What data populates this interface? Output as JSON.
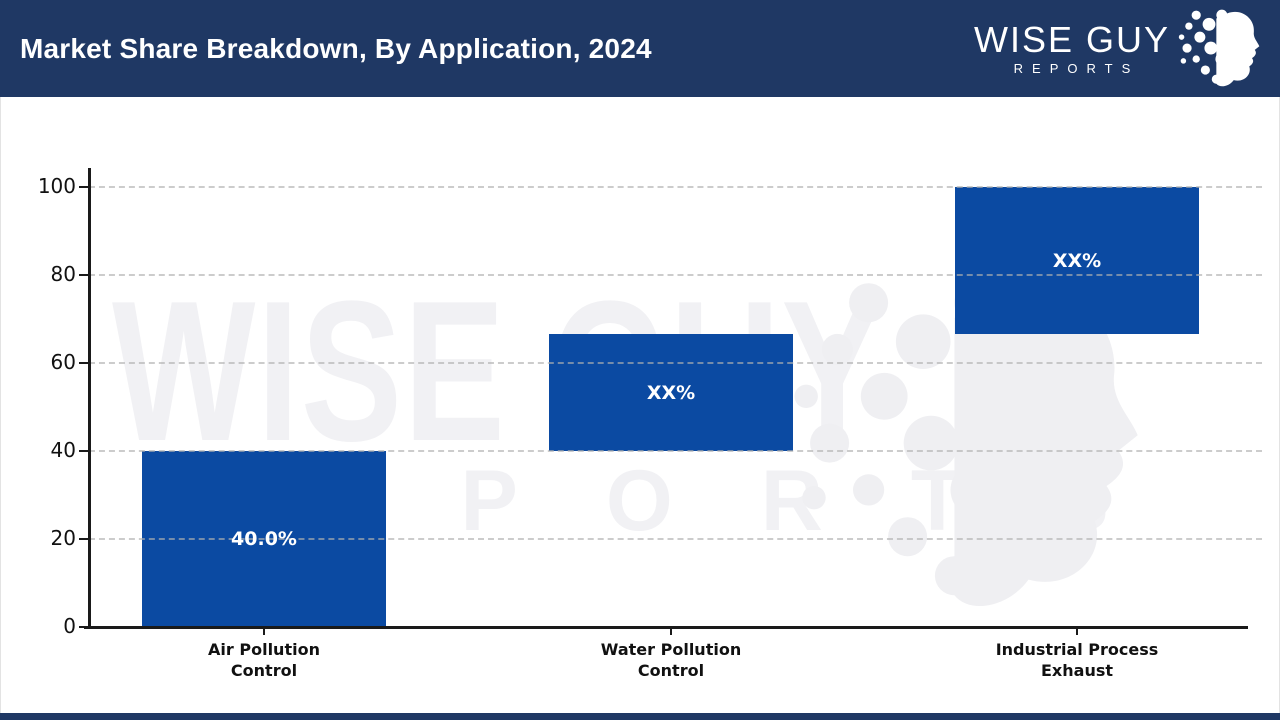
{
  "header": {
    "title": "Market Share Breakdown, By Application, 2024",
    "logo": {
      "line1": "WISE GUY",
      "line2": "REPORTS"
    }
  },
  "watermark": {
    "line1": "WISE GUY",
    "line2": "REPORTS"
  },
  "colors": {
    "header_navy": "#1f3864",
    "bar_blue": "#0b4aa2",
    "axis_black": "#1a1a1a",
    "grid_gray": "#c9c9c9",
    "watermark_gray": "#f1f1f4"
  },
  "chart_data": {
    "type": "bar",
    "subtype": "waterfall",
    "title": "Market Share Breakdown, By Application, 2024",
    "categories": [
      "Air Pollution Control",
      "Water Pollution Control",
      "Industrial Process Exhaust"
    ],
    "category_lines": [
      [
        "Air Pollution",
        "Control"
      ],
      [
        "Water Pollution",
        "Control"
      ],
      [
        "Industrial Process",
        "Exhaust"
      ]
    ],
    "values": [
      {
        "category": "Air Pollution Control",
        "start": 0,
        "end": 40,
        "label": "40.0%"
      },
      {
        "category": "Water Pollution Control",
        "start": 40,
        "end": 66.5,
        "label": "XX%"
      },
      {
        "category": "Industrial Process Exhaust",
        "start": 66.5,
        "end": 100,
        "label": "XX%"
      }
    ],
    "ylim": [
      0,
      100
    ],
    "yticks": [
      0,
      20,
      40,
      60,
      80,
      100
    ],
    "xlabel": "",
    "ylabel": "",
    "grid": true,
    "grid_style": "dashed, drawn above bars",
    "legend": "none",
    "bar_color": "#0b4aa2"
  }
}
